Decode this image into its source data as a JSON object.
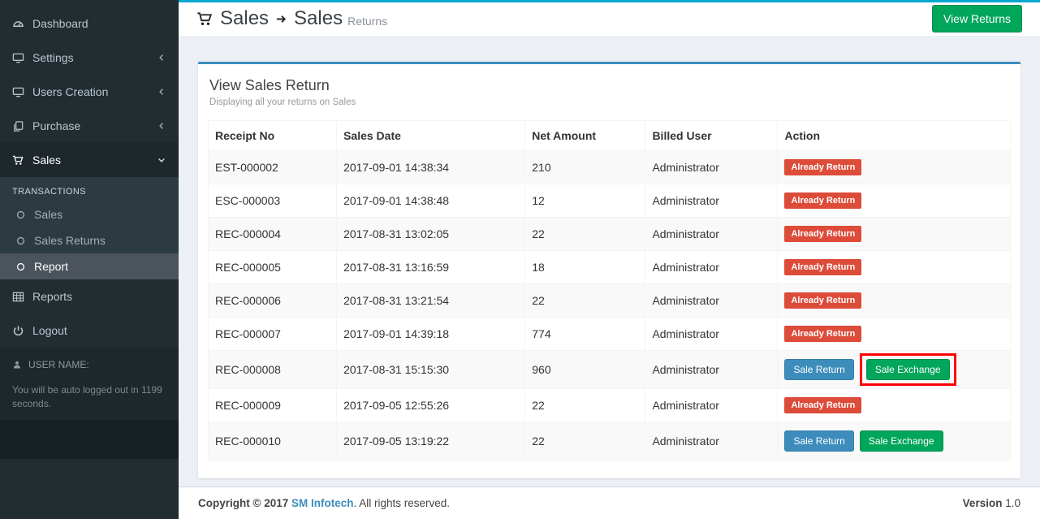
{
  "colors": {
    "accent_blue": "#3c8dbc",
    "success_green": "#00a65a",
    "danger_red": "#dd4b39",
    "annotation_red": "#ff0000",
    "topbar_teal": "#00a7d0",
    "sidebar_dark": "#222d32"
  },
  "sidebar": {
    "items": [
      {
        "label": "Dashboard",
        "icon": "dashboard-icon"
      },
      {
        "label": "Settings",
        "icon": "monitor-icon",
        "chevron": "left"
      },
      {
        "label": "Users Creation",
        "icon": "monitor-icon",
        "chevron": "left"
      },
      {
        "label": "Purchase",
        "icon": "copy-icon",
        "chevron": "left"
      },
      {
        "label": "Sales",
        "icon": "cart-icon",
        "chevron": "down",
        "state": "active"
      }
    ],
    "section_header": "TRANSACTIONS",
    "sub_items": [
      {
        "label": "Sales",
        "icon": "circle-icon"
      },
      {
        "label": "Sales Returns",
        "icon": "circle-icon"
      },
      {
        "label": "Report",
        "icon": "circle-icon",
        "state": "highlighted"
      }
    ],
    "lower_items": [
      {
        "label": "Reports",
        "icon": "table-icon"
      },
      {
        "label": "Logout",
        "icon": "power-icon"
      }
    ],
    "user_section": {
      "label": "USER NAME:",
      "note": "You will be auto logged out in 1199 seconds."
    }
  },
  "header": {
    "breadcrumb_section": "Sales",
    "breadcrumb_page": "Sales",
    "breadcrumb_subpage": "Returns",
    "view_returns_button": "View Returns"
  },
  "panel": {
    "title": "View Sales Return",
    "subtitle": "Displaying all your returns on Sales"
  },
  "table": {
    "columns": [
      "Receipt No",
      "Sales Date",
      "Net Amount",
      "Billed User",
      "Action"
    ],
    "rows": [
      {
        "receipt": "EST-000002",
        "date": "2017-09-01 14:38:34",
        "amount": "210",
        "user": "Administrator",
        "actions": [
          {
            "label": "Already Return",
            "type": "danger"
          }
        ]
      },
      {
        "receipt": "ESC-000003",
        "date": "2017-09-01 14:38:48",
        "amount": "12",
        "user": "Administrator",
        "actions": [
          {
            "label": "Already Return",
            "type": "danger"
          }
        ]
      },
      {
        "receipt": "REC-000004",
        "date": "2017-08-31 13:02:05",
        "amount": "22",
        "user": "Administrator",
        "actions": [
          {
            "label": "Already Return",
            "type": "danger"
          }
        ]
      },
      {
        "receipt": "REC-000005",
        "date": "2017-08-31 13:16:59",
        "amount": "18",
        "user": "Administrator",
        "actions": [
          {
            "label": "Already Return",
            "type": "danger"
          }
        ]
      },
      {
        "receipt": "REC-000006",
        "date": "2017-08-31 13:21:54",
        "amount": "22",
        "user": "Administrator",
        "actions": [
          {
            "label": "Already Return",
            "type": "danger"
          }
        ]
      },
      {
        "receipt": "REC-000007",
        "date": "2017-09-01 14:39:18",
        "amount": "774",
        "user": "Administrator",
        "actions": [
          {
            "label": "Already Return",
            "type": "danger"
          }
        ]
      },
      {
        "receipt": "REC-000008",
        "date": "2017-08-31 15:15:30",
        "amount": "960",
        "user": "Administrator",
        "actions": [
          {
            "label": "Sale Return",
            "type": "primary"
          },
          {
            "label": "Sale Exchange",
            "type": "success",
            "annotated": true
          }
        ]
      },
      {
        "receipt": "REC-000009",
        "date": "2017-09-05 12:55:26",
        "amount": "22",
        "user": "Administrator",
        "actions": [
          {
            "label": "Already Return",
            "type": "danger"
          }
        ]
      },
      {
        "receipt": "REC-000010",
        "date": "2017-09-05 13:19:22",
        "amount": "22",
        "user": "Administrator",
        "actions": [
          {
            "label": "Sale Return",
            "type": "primary"
          },
          {
            "label": "Sale Exchange",
            "type": "success"
          }
        ]
      }
    ]
  },
  "footer": {
    "copyright_prefix": "Copyright © 2017",
    "company": "SM Infotech",
    "copyright_suffix": ". All rights reserved.",
    "version_label": "Version",
    "version_number": "1.0"
  }
}
